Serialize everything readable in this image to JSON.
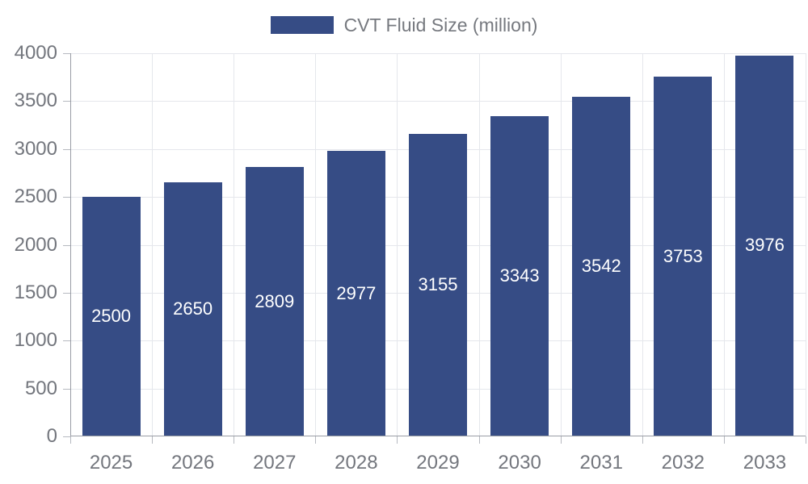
{
  "chart_data": {
    "type": "bar",
    "categories": [
      "2025",
      "2026",
      "2027",
      "2028",
      "2029",
      "2030",
      "2031",
      "2032",
      "2033"
    ],
    "series": [
      {
        "name": "CVT Fluid Size (million)",
        "values": [
          2500,
          2650,
          2809,
          2977,
          3155,
          3343,
          3542,
          3753,
          3976
        ],
        "color": "#364c85"
      }
    ],
    "title": "",
    "xlabel": "",
    "ylabel": "",
    "ylim": [
      0,
      4000
    ],
    "yticks": [
      0,
      500,
      1000,
      1500,
      2000,
      2500,
      3000,
      3500,
      4000
    ],
    "grid": true,
    "legend_position": "top",
    "value_labels": {
      "color": "#ffffff",
      "position": "inside-center"
    }
  }
}
